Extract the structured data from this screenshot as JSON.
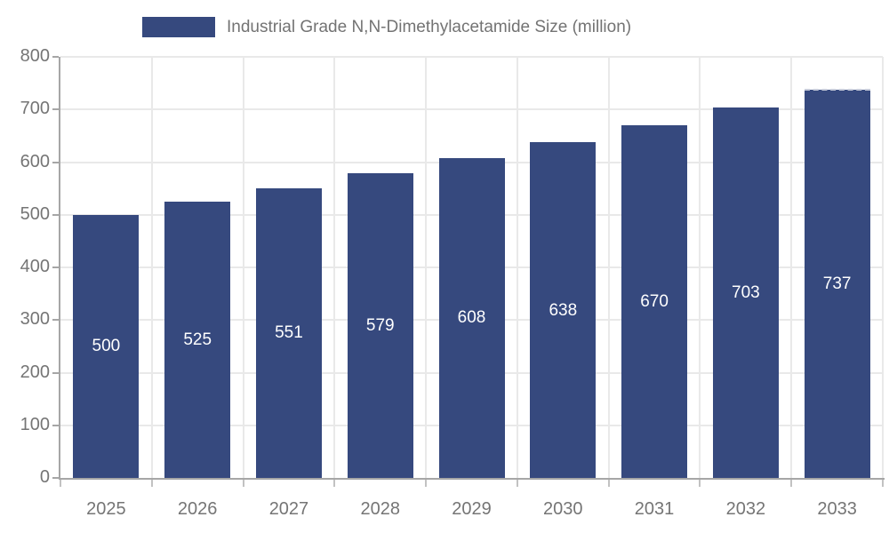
{
  "chart_data": {
    "type": "bar",
    "title": "Industrial Grade N,N-Dimethylacetamide Size (million)",
    "categories": [
      "2025",
      "2026",
      "2027",
      "2028",
      "2029",
      "2030",
      "2031",
      "2032",
      "2033"
    ],
    "values": [
      500,
      525,
      551,
      579,
      608,
      638,
      670,
      703,
      737
    ],
    "xlabel": "",
    "ylabel": "",
    "ylim": [
      0,
      800
    ],
    "ytick_interval": 100,
    "yticks": [
      "0",
      "100",
      "200",
      "300",
      "400",
      "500",
      "600",
      "700",
      "800"
    ],
    "legend_position": "top",
    "grid": true,
    "colors": {
      "bar": "#36497E",
      "bar_label": "#ffffff",
      "axis_text": "#757575",
      "legend_text": "#737373",
      "axis_line": "#a6a6a6",
      "gridline": "#e9e9e9"
    }
  }
}
